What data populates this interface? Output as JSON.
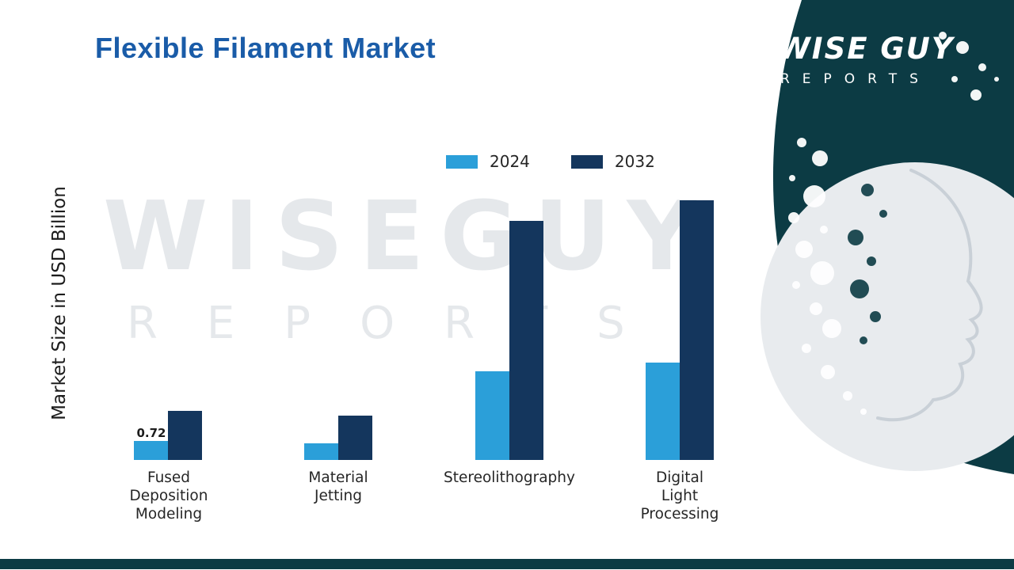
{
  "page": {
    "title": "Flexible Filament Market",
    "ylabel": "Market Size in USD Billion"
  },
  "logo": {
    "line1": "WISE GUY",
    "line2": "REPORTS"
  },
  "watermark": {
    "line1": "WISEGUY",
    "line2": "REPORTS"
  },
  "colors": {
    "title_blue": "#1A5CA8",
    "series_2024": "#2B9FD9",
    "series_2032": "#14365D",
    "brand_teal": "#0C3B44",
    "watermark_gray": "#C7CDD4"
  },
  "chart_data": {
    "type": "bar",
    "title": "Flexible Filament Market",
    "ylabel": "Market Size in USD Billion",
    "categories": [
      "Fused Deposition Modeling",
      "Material Jetting",
      "Stereolithography",
      "Digital Light Processing"
    ],
    "series": [
      {
        "name": "2024",
        "color": "#2B9FD9",
        "values": [
          0.72,
          0.65,
          3.4,
          3.75
        ]
      },
      {
        "name": "2032",
        "color": "#14365D",
        "values": [
          1.9,
          1.7,
          9.2,
          10.0
        ]
      }
    ],
    "ylim": [
      0,
      10.2
    ],
    "grid": false,
    "legend_position": "top",
    "value_labels": [
      {
        "series": "2024",
        "category": "Fused Deposition Modeling",
        "text": "0.72"
      }
    ]
  }
}
